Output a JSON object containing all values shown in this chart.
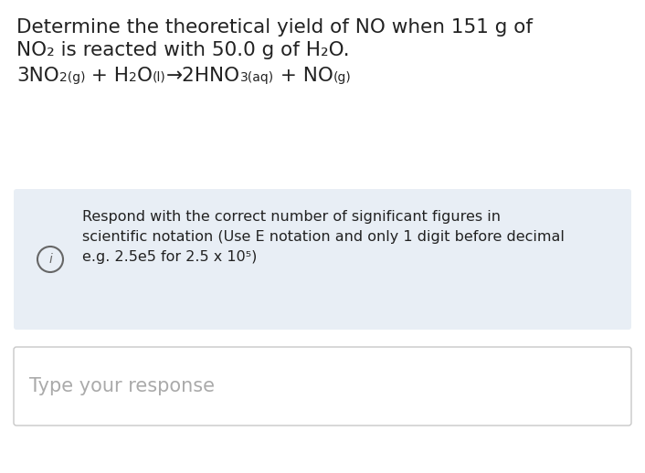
{
  "bg_color": "#ffffff",
  "title_line1": "Determine the theoretical yield of NO when 151 g of",
  "title_line2": "NO₂ is reacted with 50.0 g of H₂O.",
  "eq_segments": [
    {
      "text": "3NO",
      "sub": false
    },
    {
      "text": "2(g)",
      "sub": true
    },
    {
      "text": " + H",
      "sub": false
    },
    {
      "text": "2",
      "sub": true
    },
    {
      "text": "O",
      "sub": false
    },
    {
      "text": "(l)",
      "sub": true
    },
    {
      "text": "→2HNO",
      "sub": false
    },
    {
      "text": "3(aq)",
      "sub": true
    },
    {
      "text": " + NO",
      "sub": false
    },
    {
      "text": "(g)",
      "sub": true
    }
  ],
  "info_box_color": "#e8eef5",
  "info_text_line1": "Respond with the correct number of significant figures in",
  "info_text_line2": "scientific notation (Use E notation and only 1 digit before decimal",
  "info_text_line3": "e.g. 2.5e5 for 2.5 x 10⁵)",
  "response_box_color": "#ffffff",
  "response_box_border": "#c8c8c8",
  "response_text": "Type your response",
  "response_text_color": "#aaaaaa",
  "text_color": "#222222",
  "info_icon_color": "#666666",
  "title_fontsize": 15.5,
  "eq_main_fontsize": 15.5,
  "eq_sub_fontsize": 10,
  "info_fontsize": 11.5,
  "response_fontsize": 15
}
